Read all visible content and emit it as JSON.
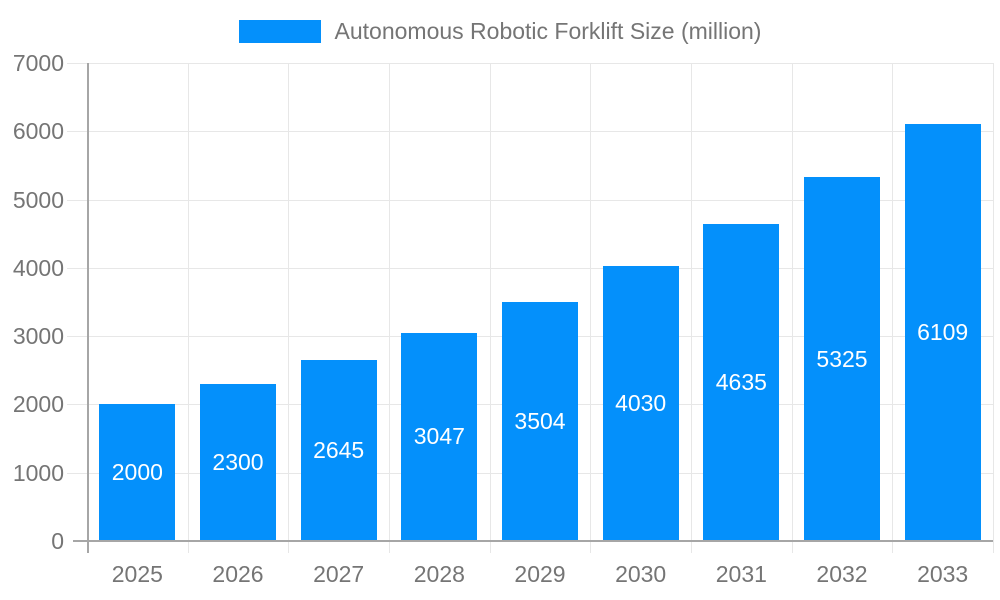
{
  "legend": {
    "label": "Autonomous Robotic Forklift Size (million)"
  },
  "chart_data": {
    "type": "bar",
    "title": "Autonomous Robotic Forklift Size (million)",
    "categories": [
      "2025",
      "2026",
      "2027",
      "2028",
      "2029",
      "2030",
      "2031",
      "2032",
      "2033"
    ],
    "values": [
      2000,
      2300,
      2645,
      3047,
      3504,
      4030,
      4635,
      5325,
      6109
    ],
    "series": [
      {
        "name": "Autonomous Robotic Forklift Size (million)",
        "values": [
          2000,
          2300,
          2645,
          3047,
          3504,
          4030,
          4635,
          5325,
          6109
        ]
      }
    ],
    "xlabel": "",
    "ylabel": "",
    "ylim": [
      0,
      7000
    ],
    "yticks": [
      0,
      1000,
      2000,
      3000,
      4000,
      5000,
      6000,
      7000
    ],
    "grid": true,
    "legend_position": "top",
    "value_labels_shown": true,
    "colors": {
      "bar": "#0490fb",
      "grid": "#e7e7e7",
      "axis": "#a6a6a6",
      "tick_text": "#757575",
      "value_text": "#ffffff"
    }
  }
}
